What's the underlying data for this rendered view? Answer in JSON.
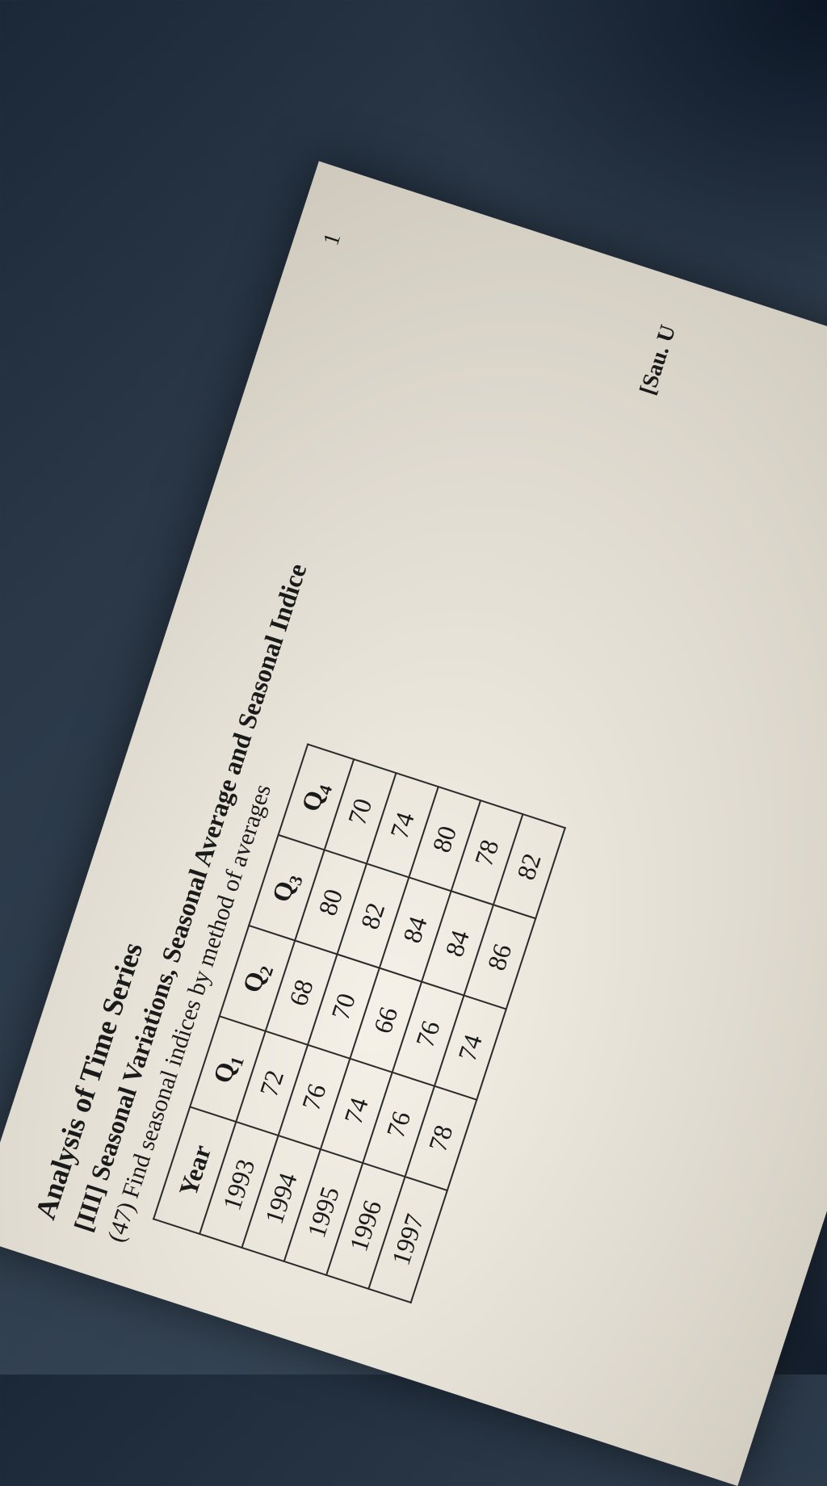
{
  "page_number_fragment": "1",
  "chapter_title": "Analysis of Time Series",
  "section_heading": "[III] Seasonal Variations, Seasonal Average and Seasonal Indice",
  "question": {
    "number": "(47)",
    "text": "Find seasonal indices by method of averages"
  },
  "reference": "[Sau. U",
  "table": {
    "columns": [
      {
        "label": "Year",
        "sub": ""
      },
      {
        "label": "Q",
        "sub": "1"
      },
      {
        "label": "Q",
        "sub": "2"
      },
      {
        "label": "Q",
        "sub": "3"
      },
      {
        "label": "Q",
        "sub": "4"
      }
    ],
    "rows": [
      {
        "year": "1993",
        "q1": "72",
        "q2": "68",
        "q3": "80",
        "q4": "70"
      },
      {
        "year": "1994",
        "q1": "76",
        "q2": "70",
        "q3": "82",
        "q4": "74"
      },
      {
        "year": "1995",
        "q1": "74",
        "q2": "66",
        "q3": "84",
        "q4": "80"
      },
      {
        "year": "1996",
        "q1": "76",
        "q2": "76",
        "q3": "84",
        "q4": "78"
      },
      {
        "year": "1997",
        "q1": "78",
        "q2": "74",
        "q3": "86",
        "q4": "82"
      }
    ],
    "border_color": "#2a2a2a",
    "text_color": "#1a1a1a",
    "cell_fontsize": 32
  },
  "background_colors": {
    "page": "#e8e4dc",
    "backdrop": "#1a2838"
  }
}
